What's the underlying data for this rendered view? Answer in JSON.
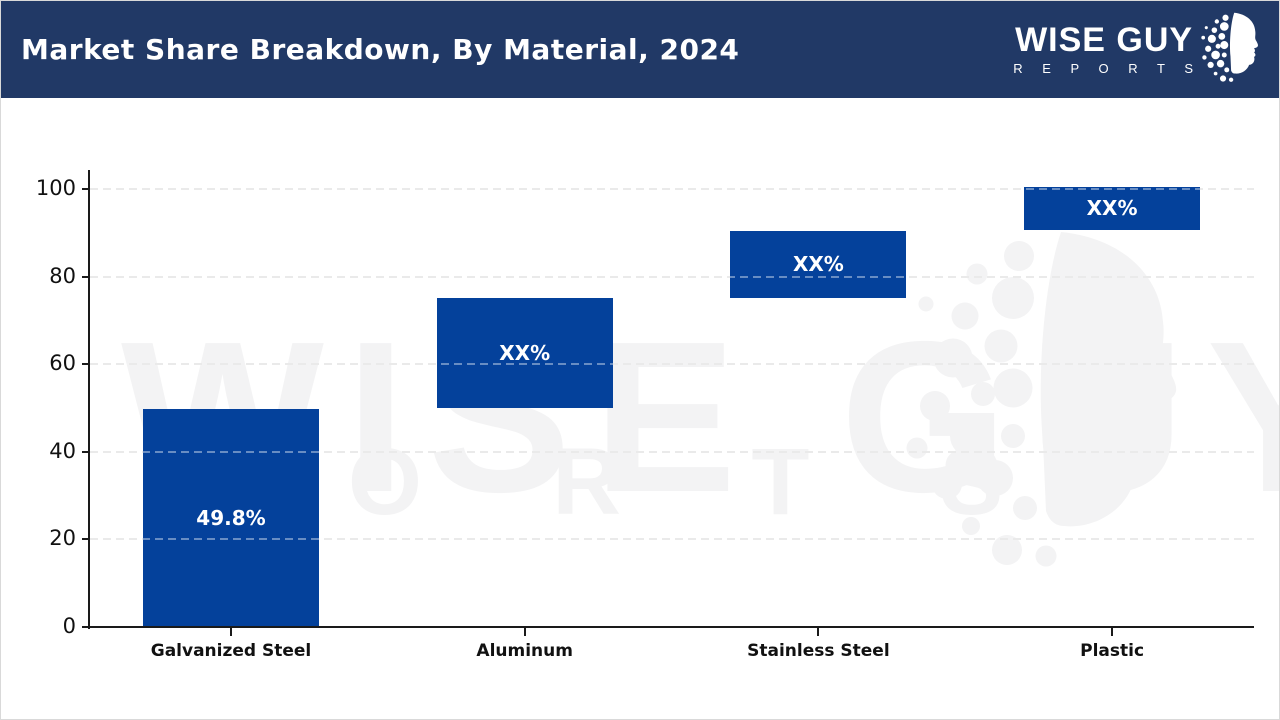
{
  "header": {
    "title": "Market Share Breakdown, By Material, 2024",
    "bg_color": "#213966",
    "logo": {
      "line1": "WISE GUY",
      "line2": "R E P O R T S"
    }
  },
  "watermark": {
    "line1": "WISE GUY",
    "line2": "P O R T S"
  },
  "chart_data": {
    "type": "bar",
    "subtype": "floating-waterfall",
    "title": "Market Share Breakdown, By Material, 2024",
    "xlabel": "",
    "ylabel": "",
    "categories": [
      "Galvanized Steel",
      "Aluminum",
      "Stainless Steel",
      "Plastic"
    ],
    "segments": [
      {
        "category": "Galvanized Steel",
        "start": 0,
        "end": 49.8,
        "label": "49.8%"
      },
      {
        "category": "Aluminum",
        "start": 50.0,
        "end": 75.0,
        "label": "XX%"
      },
      {
        "category": "Stainless Steel",
        "start": 75.2,
        "end": 90.4,
        "label": "XX%"
      },
      {
        "category": "Plastic",
        "start": 90.6,
        "end": 100.5,
        "label": "XX%"
      }
    ],
    "yticks": [
      0,
      20,
      40,
      60,
      80,
      100
    ],
    "ylim": [
      0,
      105
    ],
    "grid": true,
    "grid_style": "dashed",
    "legend": "none",
    "colors": {
      "bar": "#04419B",
      "bar_label": "#FFFFFF",
      "grid": "#DCDCDC",
      "axis": "#1A1A1A",
      "tick_text": "#111111",
      "watermark": "#F3F3F4"
    }
  }
}
